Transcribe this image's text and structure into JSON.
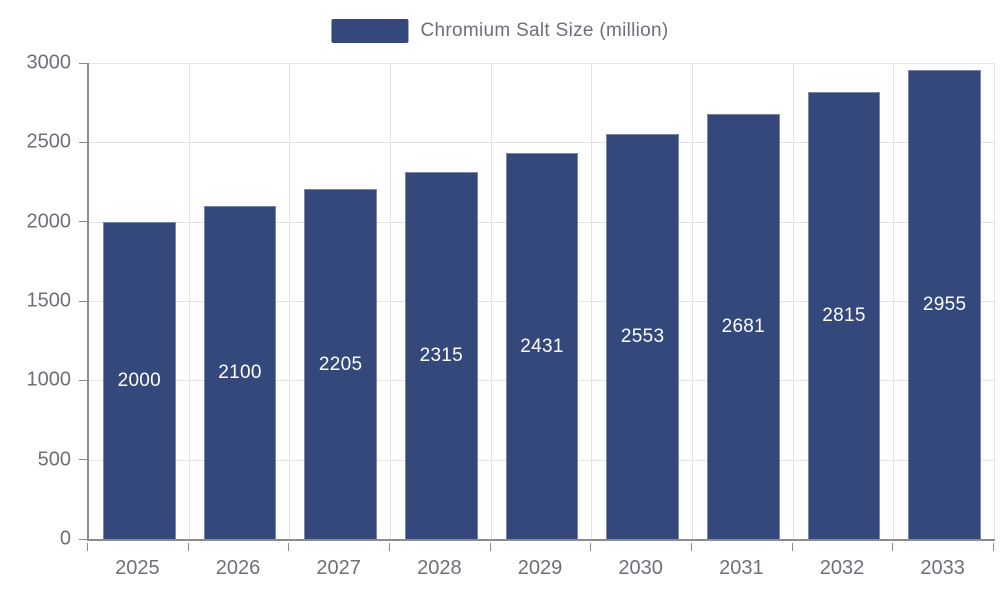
{
  "legend": {
    "label": "Chromium Salt Size (million)"
  },
  "colors": {
    "bar": "#34487C",
    "grid": "#E3E3E3",
    "axis": "#8C8C8C",
    "tick_label": "#6E7079",
    "bar_label": "#FFFFFF",
    "background": "#FFFFFF"
  },
  "chart_data": {
    "type": "bar",
    "title": "Chromium Salt Size (million)",
    "series": [
      {
        "name": "Chromium Salt Size (million)",
        "values": [
          2000,
          2100,
          2205,
          2315,
          2431,
          2553,
          2681,
          2815,
          2955
        ]
      }
    ],
    "categories": [
      "2025",
      "2026",
      "2027",
      "2028",
      "2029",
      "2030",
      "2031",
      "2032",
      "2033"
    ],
    "xlabel": "",
    "ylabel": "",
    "ylim": [
      0,
      3000
    ],
    "yticks": [
      0,
      500,
      1000,
      1500,
      2000,
      2500,
      3000
    ],
    "grid": true,
    "legend_position": "top-center",
    "bar_label_position": "inside-center",
    "bar_width_fraction": 0.72
  }
}
